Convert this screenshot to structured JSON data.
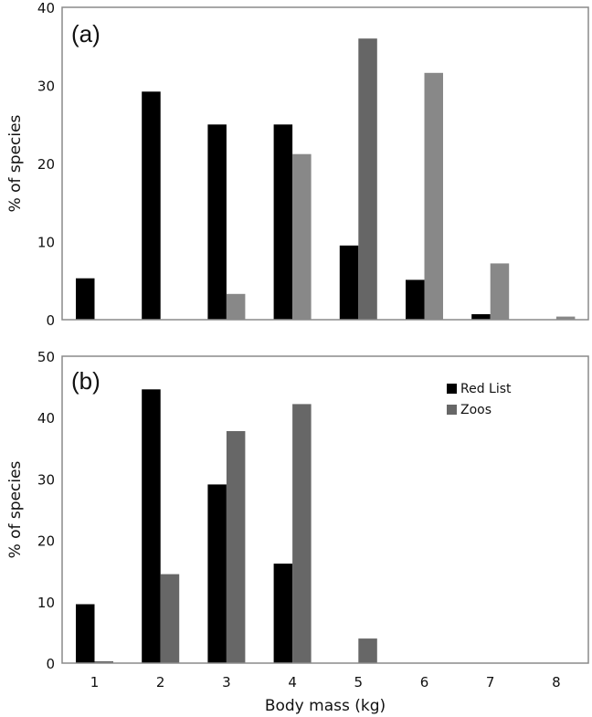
{
  "chart_data": [
    {
      "type": "bar",
      "panel_label": "(a)",
      "title": "",
      "xlabel": "",
      "ylabel": "% of species",
      "ylim": [
        0,
        40
      ],
      "yticks": [
        "0",
        "10",
        "20",
        "30",
        "40"
      ],
      "ytick_values": [
        0,
        10,
        20,
        30,
        40
      ],
      "categories": [
        "1",
        "2",
        "3",
        "4",
        "5",
        "6",
        "7",
        "8"
      ],
      "show_x_tick_labels": false,
      "grid": false,
      "series": [
        {
          "name": "Red List",
          "color": "#000000",
          "values": [
            5.3,
            29.2,
            25.0,
            25.0,
            9.5,
            5.1,
            0.7,
            0.0
          ]
        },
        {
          "name": "Zoos",
          "color": "#888888",
          "bar_colors": [
            "#888888",
            "#888888",
            "#888888",
            "#888888",
            "#666666",
            "#888888",
            "#888888",
            "#888888"
          ],
          "values": [
            0.0,
            0.0,
            3.3,
            21.2,
            36.0,
            31.6,
            7.2,
            0.4
          ]
        }
      ]
    },
    {
      "type": "bar",
      "panel_label": "(b)",
      "title": "",
      "xlabel": "Body mass (kg)",
      "ylabel": "% of species",
      "ylim": [
        0,
        50
      ],
      "yticks": [
        "0",
        "10",
        "20",
        "30",
        "40",
        "50"
      ],
      "ytick_values": [
        0,
        10,
        20,
        30,
        40,
        50
      ],
      "categories": [
        "1",
        "2",
        "3",
        "4",
        "5",
        "6",
        "7",
        "8"
      ],
      "show_x_tick_labels": true,
      "grid": false,
      "legend": {
        "placement": "top-right",
        "entries": [
          "Red List",
          "Zoos"
        ]
      },
      "series": [
        {
          "name": "Red List",
          "color": "#000000",
          "values": [
            9.6,
            44.6,
            29.1,
            16.2,
            0.0,
            0.0,
            0.0,
            0.0
          ]
        },
        {
          "name": "Zoos",
          "color": "#676767",
          "values": [
            0.3,
            14.5,
            37.8,
            42.2,
            4.0,
            0.0,
            0.0,
            0.0
          ]
        }
      ]
    }
  ]
}
